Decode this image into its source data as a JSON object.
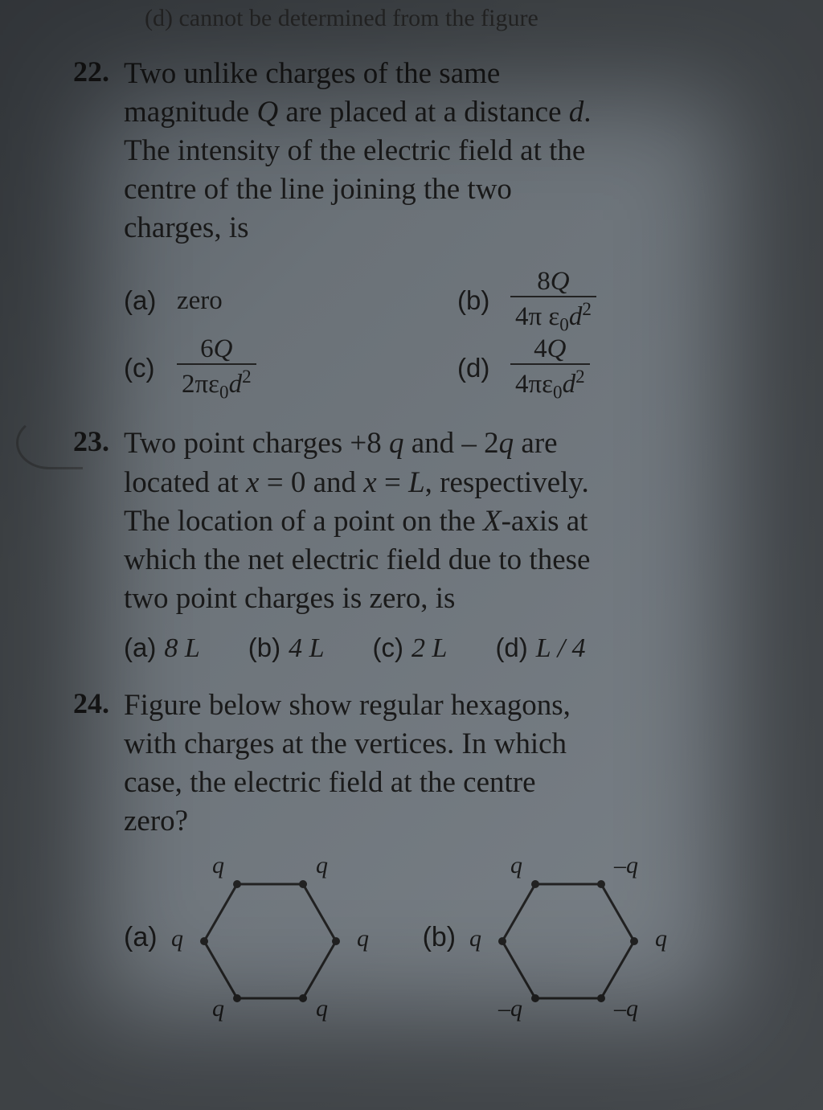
{
  "top_fragment": "(d) cannot be determined from the figure",
  "q22": {
    "num": "22.",
    "text_parts": {
      "l1a": "Two unlike charges of the same",
      "l2a": "magnitude ",
      "Q": "Q",
      "l2b": " are placed at a distance ",
      "d": "d",
      "l2c": ".",
      "l3": "The intensity of the electric field at the",
      "l4": "centre of the line joining the two",
      "l5": "charges, is"
    },
    "options": {
      "a": {
        "label": "(a)",
        "text": "zero"
      },
      "b": {
        "label": "(b)",
        "num": "8",
        "numQ": "Q",
        "den_pre": "4π ε",
        "den_sub": "0",
        "den_d": "d",
        "den_pow": "2"
      },
      "c": {
        "label": "(c)",
        "num": "6",
        "numQ": "Q",
        "den_pre": "2πε",
        "den_sub": "0",
        "den_d": "d",
        "den_pow": "2"
      },
      "d": {
        "label": "(d)",
        "num": "4",
        "numQ": "Q",
        "den_pre": "4πε",
        "den_sub": "0",
        "den_d": "d",
        "den_pow": "2"
      }
    }
  },
  "q23": {
    "num": "23.",
    "text_parts": {
      "l1a": "Two point charges +8",
      "q1": "q",
      "l1b": " and – 2",
      "q2": "q",
      "l1c": " are",
      "l2a": "located at ",
      "xeq0": "x",
      "l2b": " = 0 and ",
      "xeqL_x": "x",
      "l2c": " = ",
      "L": "L",
      "l2d": ", respectively.",
      "l3a": "The location of a point on the ",
      "Xaxis": "X",
      "l3b": "-axis at",
      "l4": "which the net electric field due to these",
      "l5": "two point charges is zero, is"
    },
    "options": {
      "a": {
        "label": "(a)",
        "val": "8 L"
      },
      "b": {
        "label": "(b)",
        "val": "4 L"
      },
      "c": {
        "label": "(c)",
        "val": "2 L"
      },
      "d": {
        "label": "(d)",
        "val": "L / 4"
      }
    }
  },
  "q24": {
    "num": "24.",
    "text_parts": {
      "l1": "Figure below show regular hexagons,",
      "l2": "with charges at the vertices. In which",
      "l3": "case, the electric field at the centre",
      "l4": "zero?"
    },
    "options": {
      "a": {
        "label": "(a)"
      },
      "b": {
        "label": "(b)"
      }
    },
    "hex_a": {
      "labels": [
        "q",
        "q",
        "q",
        "q",
        "q",
        "q"
      ],
      "stroke": "#222222",
      "stroke_width": 3,
      "fill": "none",
      "dot_fill": "#222222",
      "font_size": 30
    },
    "hex_b": {
      "labels": [
        "q",
        "–q",
        "q",
        "–q",
        "–q",
        "q"
      ],
      "stroke": "#222222",
      "stroke_width": 3,
      "fill": "none",
      "dot_fill": "#222222",
      "font_size": 30
    }
  },
  "styling": {
    "page_bg": "#6b7278",
    "text_color": "#1a1a1a",
    "question_fontsize": 37,
    "option_fontsize": 33,
    "qnum_fontsize": 36
  }
}
